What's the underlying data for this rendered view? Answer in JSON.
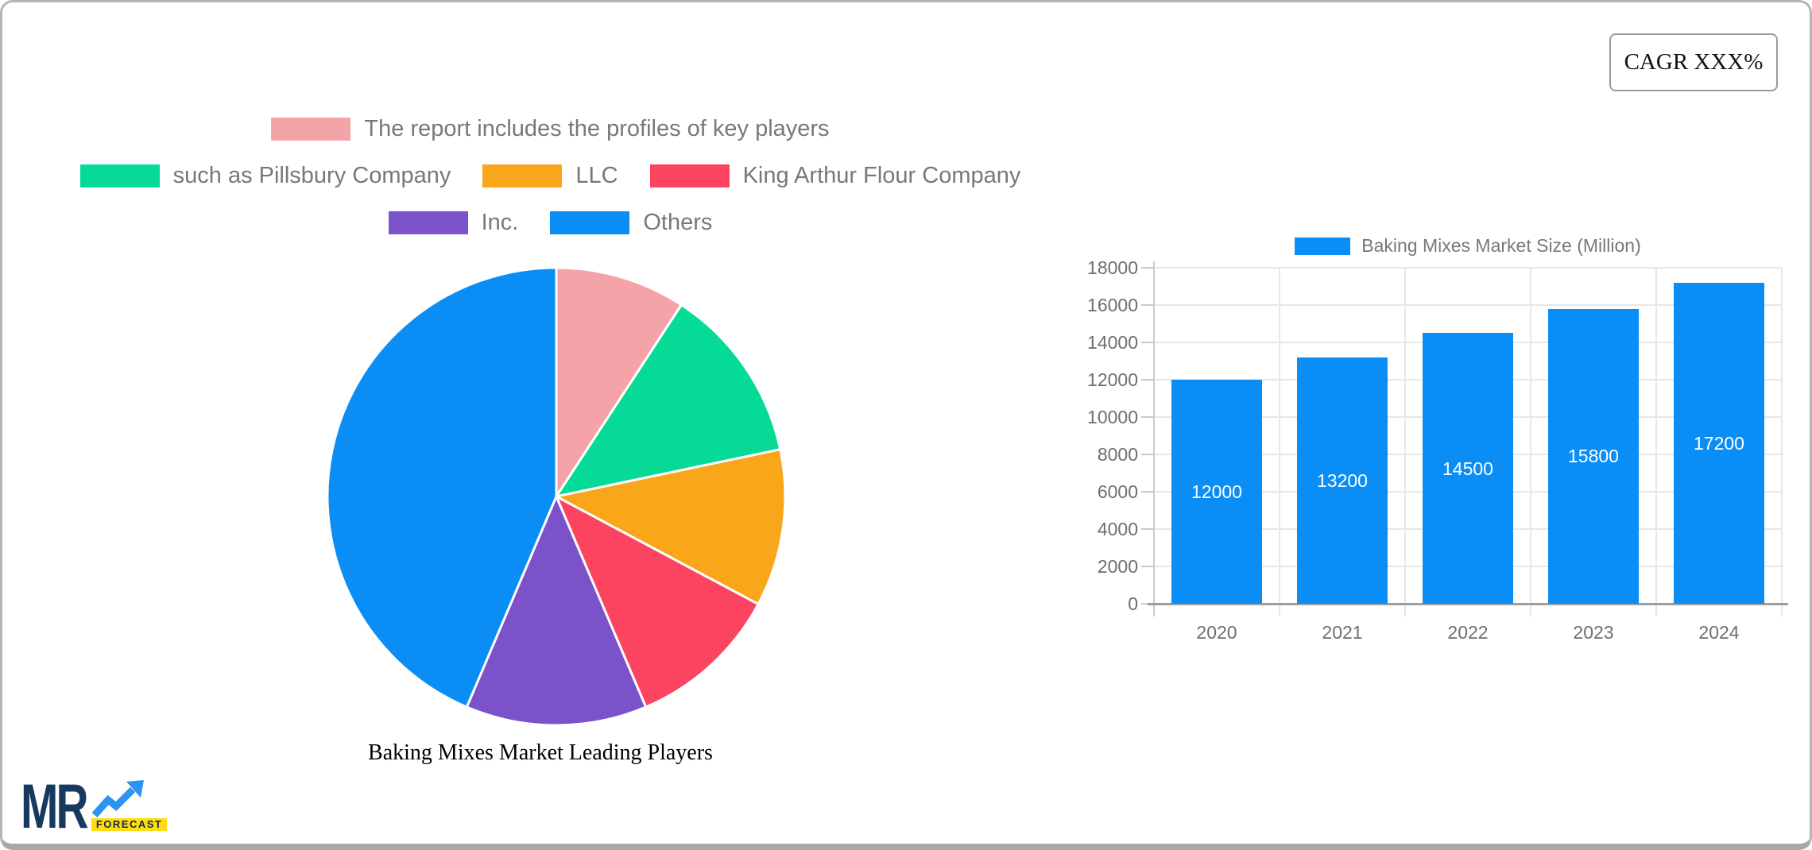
{
  "cagr": {
    "label": "CAGR XXX%"
  },
  "logo": {
    "mr": "MR",
    "forecast": "FORECAST"
  },
  "chart_data": [
    {
      "type": "pie",
      "title": "Baking Mixes Market Leading Players",
      "labels": [
        "The report includes the profiles of key players",
        "such as Pillsbury Company",
        "LLC",
        "King Arthur Flour Company",
        "Inc.",
        "Others"
      ],
      "values": [
        9.2,
        12.5,
        11.1,
        10.8,
        12.8,
        43.6
      ],
      "colors": [
        "#F4A3A8",
        "#05DB96",
        "#F9A61B",
        "#FB4460",
        "#7B52C9",
        "#0A8EF5"
      ],
      "legend_position": "top",
      "legend_rows": [
        [
          0
        ],
        [
          1,
          2,
          3
        ],
        [
          4,
          5
        ]
      ],
      "slice_border_color": "#FFFFFF"
    },
    {
      "type": "bar",
      "legend": "Baking Mixes Market Size (Million)",
      "categories": [
        "2020",
        "2021",
        "2022",
        "2023",
        "2024"
      ],
      "values": [
        12000,
        13200,
        14500,
        15800,
        17200
      ],
      "bar_color": "#0A8EF5",
      "value_label_color": "#FFFFFF",
      "ylim": [
        0,
        18000
      ],
      "ytick_step": 2000,
      "grid": true,
      "legend_position": "top",
      "value_labels_position": "inside-center"
    }
  ]
}
